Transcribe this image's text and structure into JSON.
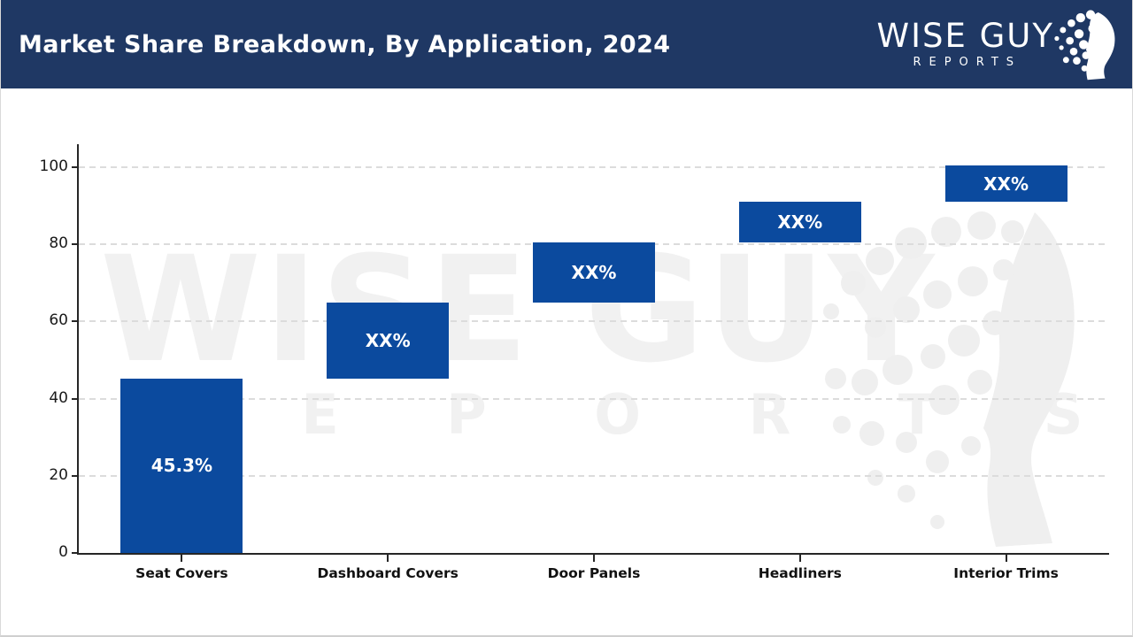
{
  "header": {
    "title": "Market Share Breakdown, By Application, 2024",
    "background_color": "#1f3864",
    "logo": {
      "wordmark": "WISE GUY",
      "subtext": "REPORTS"
    }
  },
  "watermark": {
    "line1": "WISE GUY",
    "line2": "R E P O R T S"
  },
  "chart_data": {
    "type": "bar",
    "subtype": "waterfall",
    "title": "Market Share Breakdown, By Application, 2024",
    "xlabel": "",
    "ylabel": "",
    "categories": [
      "Seat Covers",
      "Dashboard Covers",
      "Door Panels",
      "Headliners",
      "Interior Trims"
    ],
    "segments": [
      {
        "category": "Seat Covers",
        "start": 0,
        "end": 45.3,
        "label": "45.3%"
      },
      {
        "category": "Dashboard Covers",
        "start": 45.3,
        "end": 65,
        "label": "XX%"
      },
      {
        "category": "Door Panels",
        "start": 65,
        "end": 80.5,
        "label": "XX%"
      },
      {
        "category": "Headliners",
        "start": 80.5,
        "end": 91,
        "label": "XX%"
      },
      {
        "category": "Interior Trims",
        "start": 91,
        "end": 100.5,
        "label": "XX%"
      }
    ],
    "yticks": [
      0,
      20,
      40,
      60,
      80,
      100
    ],
    "ylim": [
      0,
      106
    ],
    "grid": true,
    "legend_position": "none",
    "bar_color": "#0b4a9e",
    "bar_label_color": "#ffffff",
    "axis_color": "#262626",
    "grid_color": "#dcdcdc",
    "tick_label_color": "#1a1a1a"
  }
}
